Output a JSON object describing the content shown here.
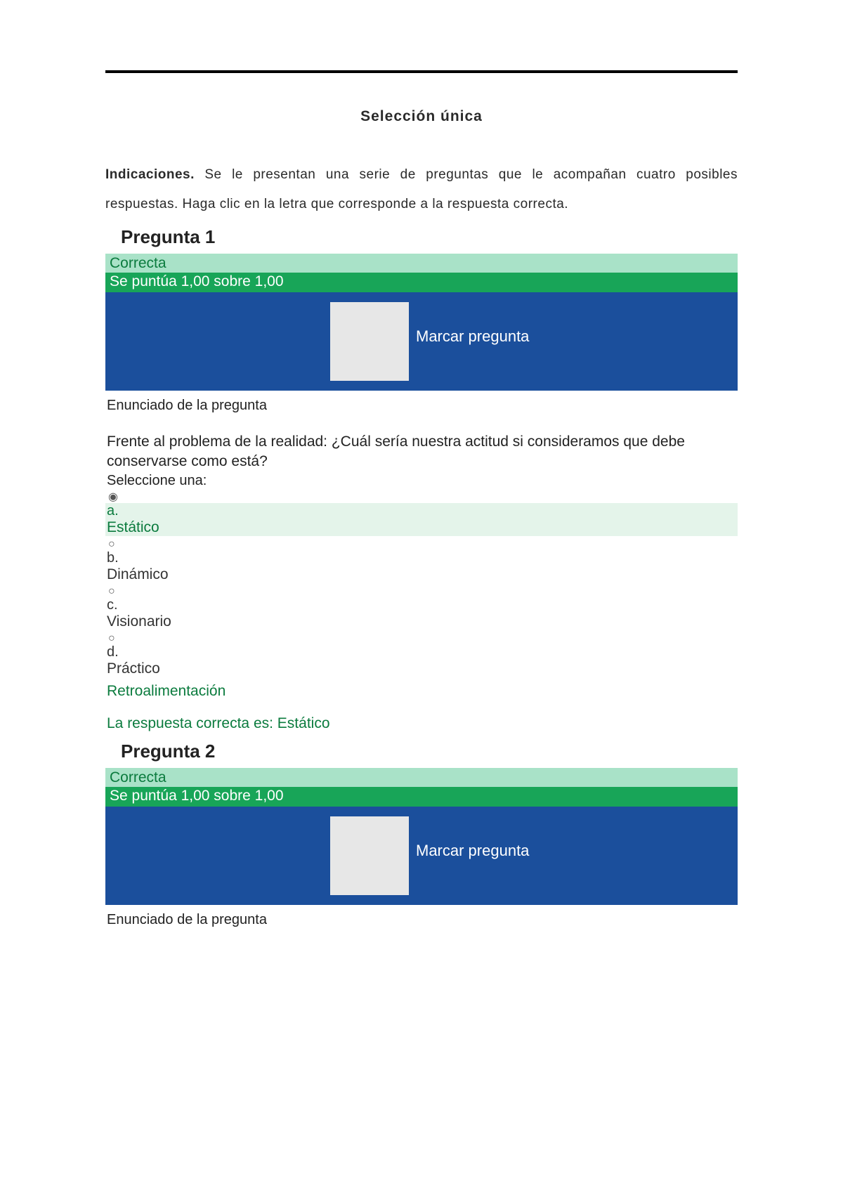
{
  "colors": {
    "rule": "#000000",
    "correct_bg_light": "#a9e2c8",
    "correct_text": "#0b7b3e",
    "score_bg": "#18a558",
    "score_text": "#ffffff",
    "flag_bg": "#1b4f9c",
    "flag_box": "#e7e7e7",
    "opt_correct_bg": "#e4f4ea",
    "body_text": "#2a2a2a"
  },
  "header": {
    "title": "Selección única",
    "instructions_bold": "Indicaciones.",
    "instructions_rest": " Se le presentan una serie de preguntas que le acompañan cuatro posibles respuestas. Haga clic en la letra que corresponde a la respuesta correcta."
  },
  "common": {
    "flag_label": "Marcar pregunta",
    "stem_label": "Enunciado de la pregunta",
    "select_one": "Seleccione una:",
    "feedback_label": "Retroalimentación",
    "feedback_prefix": "La respuesta correcta es: "
  },
  "q1": {
    "title": "Pregunta 1",
    "status": "Correcta",
    "score": "Se puntúa 1,00 sobre 1,00",
    "stem": "Frente al problema de la realidad: ¿Cuál sería nuestra actitud si consideramos que debe conservarse como está?",
    "opts": {
      "a_letter": "a.",
      "a_text": "Estático",
      "b_letter": "b.",
      "b_text": "Dinámico",
      "c_letter": "c.",
      "c_text": "Visionario",
      "d_letter": "d.",
      "d_text": "Práctico"
    },
    "correct_answer": "Estático"
  },
  "q2": {
    "title": "Pregunta 2",
    "status": "Correcta",
    "score": "Se puntúa 1,00 sobre 1,00"
  }
}
